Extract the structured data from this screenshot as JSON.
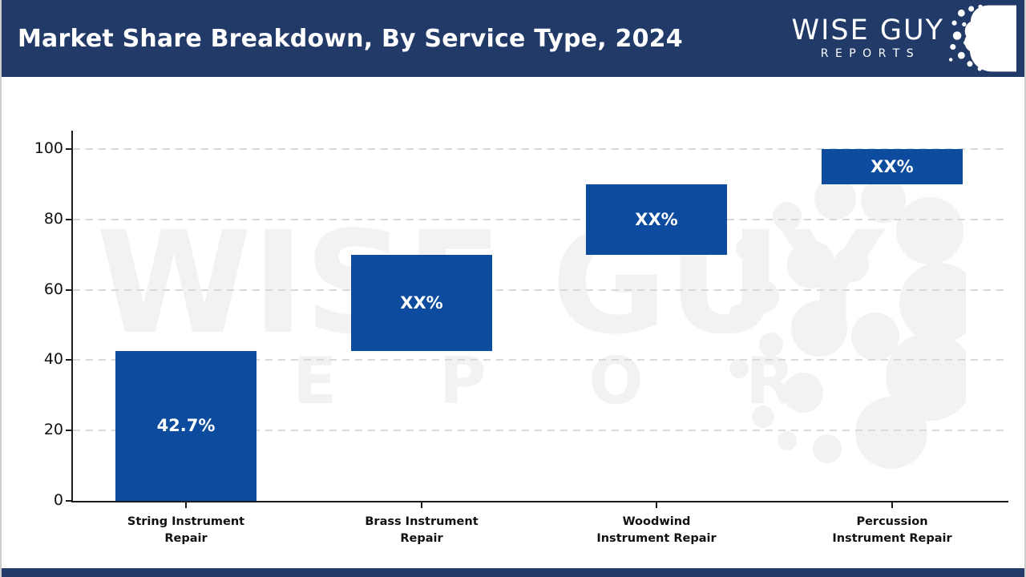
{
  "header": {
    "title": "Market Share Breakdown, By Service Type, 2024",
    "logo_line1": "WISE GUY",
    "logo_line2": "R E P O R T S"
  },
  "watermark": {
    "line1": "WISE GUY",
    "line2": "R E P O R T S"
  },
  "chart_data": {
    "type": "bar",
    "subtype": "waterfall-floating-segments",
    "title": "Market Share Breakdown, By Service Type, 2024",
    "categories": [
      [
        "String Instrument",
        "Repair"
      ],
      [
        "Brass Instrument",
        "Repair"
      ],
      [
        "Woodwind",
        "Instrument Repair"
      ],
      [
        "Percussion",
        "Instrument Repair"
      ]
    ],
    "segments": [
      {
        "category": "String Instrument Repair",
        "start": 0,
        "end": 42.7,
        "label": "42.7%"
      },
      {
        "category": "Brass Instrument Repair",
        "start": 42.7,
        "end": 70,
        "label": "XX%"
      },
      {
        "category": "Woodwind Instrument Repair",
        "start": 70,
        "end": 90,
        "label": "XX%"
      },
      {
        "category": "Percussion Instrument Repair",
        "start": 90,
        "end": 100,
        "label": "XX%"
      }
    ],
    "yticks": [
      0,
      20,
      40,
      60,
      80,
      100
    ],
    "ylim": [
      0,
      105
    ],
    "xlabel": "",
    "ylabel": "",
    "grid": "horizontal-dashed",
    "legend": "none"
  },
  "colors": {
    "header_bg": "#223a68",
    "footer_bg": "#223a68",
    "bar": "#0c4b9d",
    "grid": "#d9d9d9",
    "axis": "#1a1a1a",
    "value_label": "#ffffff",
    "watermark": "#f2f2f4",
    "page_border": "#cdcdcd"
  }
}
